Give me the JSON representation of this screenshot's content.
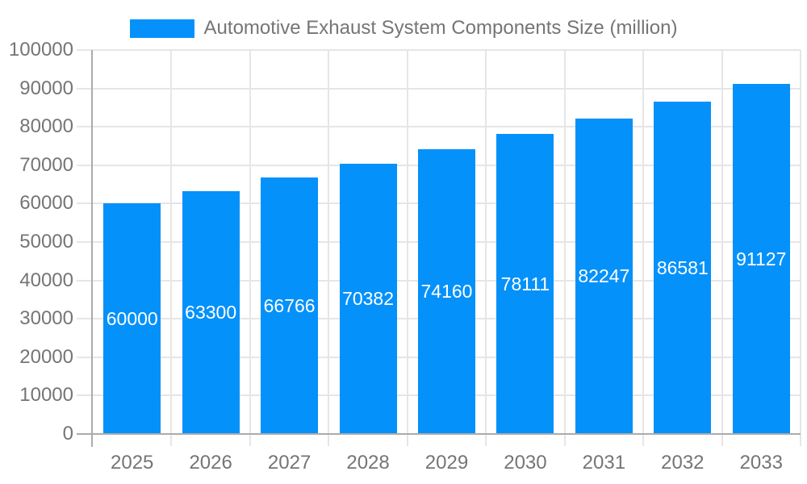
{
  "chart_data": {
    "type": "bar",
    "title": "Automotive Exhaust System Components Size (million)",
    "legend_entries": [
      "Automotive Exhaust System Components Size (million)"
    ],
    "legend_position": "top-center",
    "categories": [
      "2025",
      "2026",
      "2027",
      "2028",
      "2029",
      "2030",
      "2031",
      "2032",
      "2033"
    ],
    "values": [
      60000,
      63300,
      66766,
      70382,
      74160,
      78111,
      82247,
      86581,
      91127
    ],
    "value_labels_position": "inside-center",
    "xlabel": "",
    "ylabel": "",
    "ylim": [
      0,
      100000
    ],
    "yticks": [
      0,
      10000,
      20000,
      30000,
      40000,
      50000,
      60000,
      70000,
      80000,
      90000,
      100000
    ],
    "grid": true,
    "colors": {
      "bar": "#0591fa",
      "bar_label": "#ffffff",
      "axis_text": "#757575",
      "gridline": "#e6e6e6",
      "axis_line": "#ababab",
      "background": "#ffffff"
    }
  }
}
